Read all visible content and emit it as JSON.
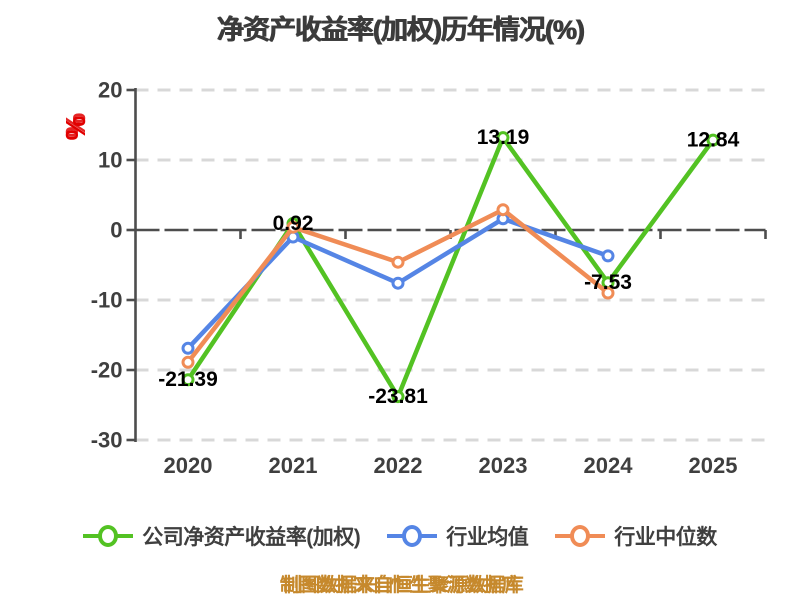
{
  "title": "净资产收益率(加权)历年情况(%)",
  "y_axis": {
    "unit_label": "%",
    "ticks": [
      "20",
      "10",
      "0",
      "-10",
      "-20",
      "-30"
    ]
  },
  "x_axis": {
    "categories": [
      "2020",
      "2021",
      "2022",
      "2023",
      "2024",
      "2025"
    ]
  },
  "chart_data": {
    "type": "line",
    "title": "净资产收益率(加权)历年情况(%)",
    "categories": [
      "2020",
      "2021",
      "2022",
      "2023",
      "2024",
      "2025"
    ],
    "ylim": [
      -30,
      20
    ],
    "yticks": [
      20,
      10,
      0,
      -10,
      -20,
      -30
    ],
    "grid": true,
    "legend_position": "bottom",
    "series": [
      {
        "name": "公司净资产收益率(加权)",
        "color": "#53c223",
        "values": [
          -21.39,
          0.92,
          -23.81,
          13.19,
          -7.53,
          12.84
        ],
        "data_labels": [
          "-21.39",
          "0.92",
          "-23.81",
          "13.19",
          "-7.53",
          "12.84"
        ]
      },
      {
        "name": "行业均值",
        "color": "#5585e5",
        "values": [
          -16.9,
          -1.0,
          -7.6,
          1.6,
          -3.7,
          null
        ],
        "data_labels": null
      },
      {
        "name": "行业中位数",
        "color": "#f08c56",
        "values": [
          -18.9,
          0.4,
          -4.6,
          2.9,
          -9.0,
          null
        ],
        "data_labels": null
      }
    ]
  },
  "legend": {
    "items": [
      {
        "label": "公司净资产收益率(加权)",
        "color": "#53c223"
      },
      {
        "label": "行业均值",
        "color": "#5585e5"
      },
      {
        "label": "行业中位数",
        "color": "#f08c56"
      }
    ]
  },
  "footer": {
    "text": "制图数据来自恒生聚源数据库",
    "color": "#c6892d"
  },
  "colors": {
    "axis_text": "#3f3f3f",
    "grid": "#d8d8d8",
    "zero_line": "#4d4d4d",
    "data_label": "#000000",
    "y_unit_label": "#e10000",
    "background": "#ffffff"
  }
}
